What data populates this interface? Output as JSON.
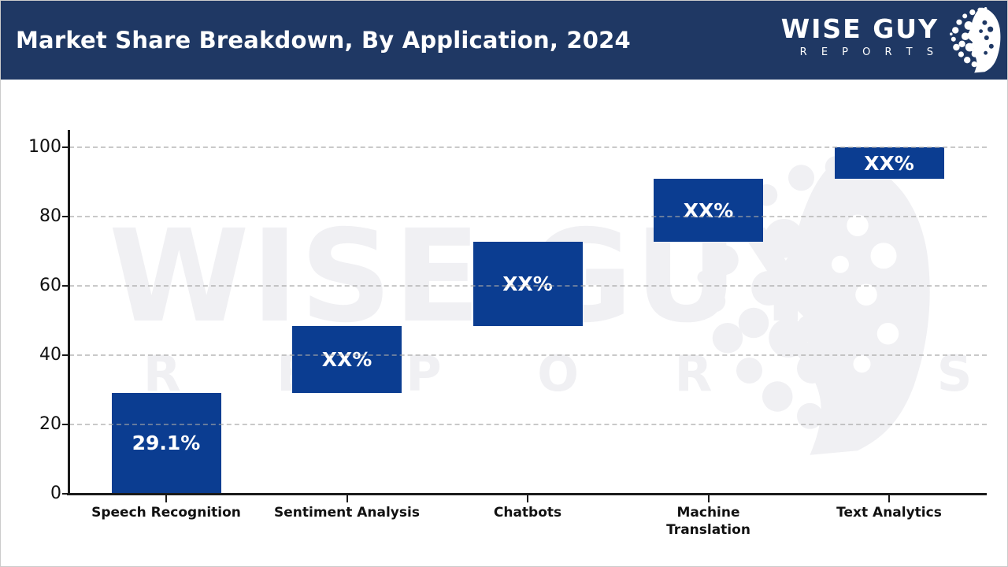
{
  "header": {
    "title": "Market Share Breakdown, By Application, 2024",
    "logo": {
      "line1": "WISE GUY",
      "line2": "R E P O R T S"
    }
  },
  "watermark": {
    "line1": "WISE GUY",
    "line2": "R E P O R T S"
  },
  "colors": {
    "header_bg": "#1f3864",
    "bar_fill": "#0b3d91",
    "bar_label": "#ffffff",
    "axis": "#1a1a1a",
    "gridline": "#c9c9c9",
    "watermark": "#f0f0f3",
    "page_border": "#cccccc"
  },
  "chart_data": {
    "type": "bar",
    "subtype": "waterfall",
    "title": "Market Share Breakdown, By Application, 2024",
    "categories": [
      "Speech Recognition",
      "Sentiment Analysis",
      "Chatbots",
      "Machine Translation",
      "Text Analytics"
    ],
    "tick_labels": [
      "Speech Recognition",
      "Sentiment Analysis",
      "Chatbots",
      "Machine\nTranslation",
      "Text Analytics"
    ],
    "segments": [
      {
        "category": "Speech Recognition",
        "start": 0,
        "end": 29.1,
        "label": "29.1%"
      },
      {
        "category": "Sentiment Analysis",
        "start": 29.1,
        "end": 48.5,
        "label": "XX%"
      },
      {
        "category": "Chatbots",
        "start": 48.5,
        "end": 72.7,
        "label": "XX%"
      },
      {
        "category": "Machine Translation",
        "start": 72.7,
        "end": 90.9,
        "label": "XX%"
      },
      {
        "category": "Text Analytics",
        "start": 90.9,
        "end": 100,
        "label": "XX%"
      }
    ],
    "xlabel": "",
    "ylabel": "",
    "ylim": [
      0,
      100
    ],
    "yticks": [
      0,
      20,
      40,
      60,
      80,
      100
    ],
    "grid": "horizontal-dashed",
    "legend": null
  }
}
